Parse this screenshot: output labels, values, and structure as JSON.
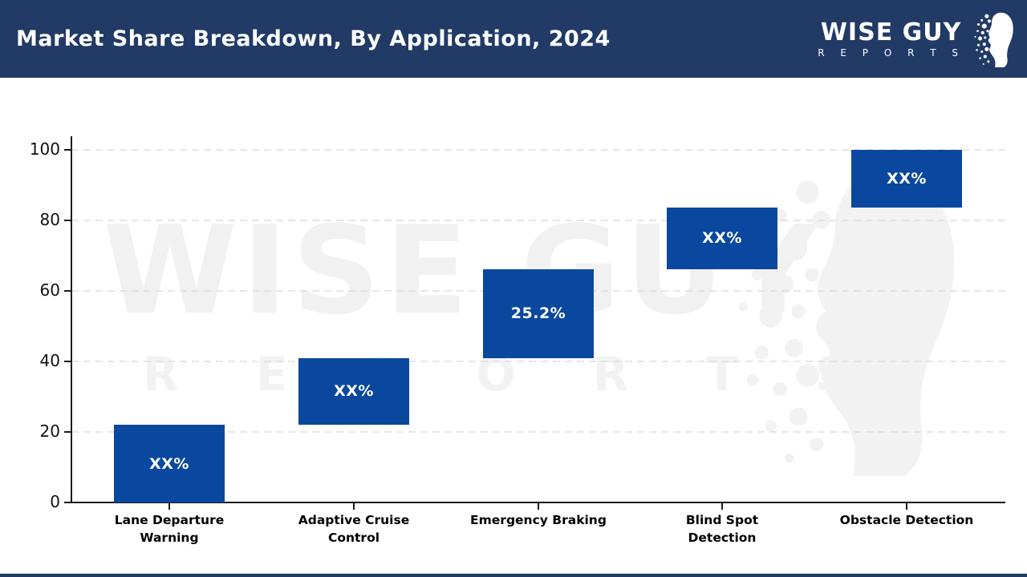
{
  "header": {
    "title": "Market Share Breakdown, By Application, 2024",
    "logo": {
      "line1": "WISE GUY",
      "line2": "R E P O R T S"
    }
  },
  "watermark": {
    "line1": "WISE GUY",
    "line2": "R E P O R T S"
  },
  "colors": {
    "header_bg": "#213a66",
    "bar_blue": "#09489e",
    "grid_gray": "#dedede",
    "axis_black": "#1a1a1a",
    "bar_label_white": "#ffffff"
  },
  "chart_data": {
    "type": "bar",
    "subtype": "waterfall",
    "title": "Market Share Breakdown, By Application, 2024",
    "xlabel": "",
    "ylabel": "",
    "ylim": [
      0,
      105
    ],
    "yticks": [
      0,
      20,
      40,
      60,
      80,
      100
    ],
    "grid": "horizontal dashed",
    "legend": "none",
    "categories": [
      "Lane Departure\nWarning",
      "Adaptive Cruise\nControl",
      "Emergency Braking",
      "Blind Spot\nDetection",
      "Obstacle Detection"
    ],
    "segments": [
      {
        "category": "Lane Departure Warning",
        "start": 0,
        "end": 22,
        "label": "XX%"
      },
      {
        "category": "Adaptive Cruise Control",
        "start": 22,
        "end": 41,
        "label": "XX%"
      },
      {
        "category": "Emergency Braking",
        "start": 41,
        "end": 66.2,
        "label": "25.2%"
      },
      {
        "category": "Blind Spot Detection",
        "start": 66.2,
        "end": 83.6,
        "label": "XX%"
      },
      {
        "category": "Obstacle Detection",
        "start": 83.6,
        "end": 100,
        "label": "XX%"
      }
    ]
  }
}
